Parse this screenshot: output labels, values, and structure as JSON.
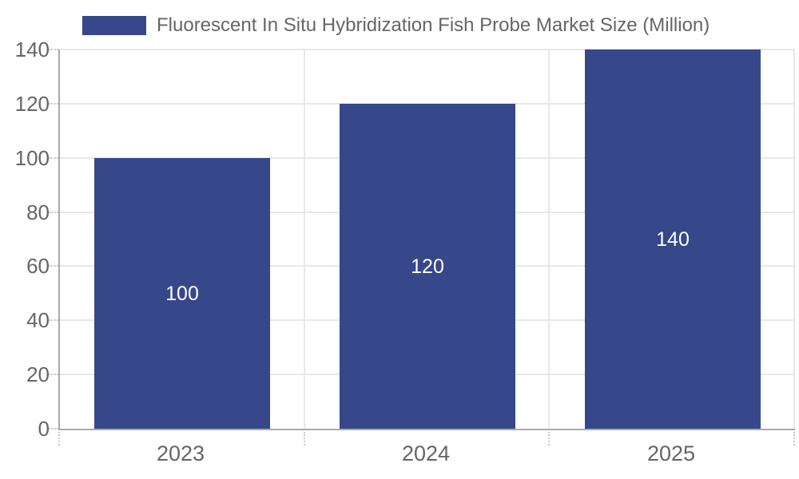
{
  "chart_data": {
    "type": "bar",
    "title": "Fluorescent In Situ Hybridization Fish Probe Market Size (Million)",
    "categories": [
      "2023",
      "2024",
      "2025"
    ],
    "values": [
      100,
      120,
      140
    ],
    "bar_labels": [
      "100",
      "120",
      "140"
    ],
    "xlabel": "",
    "ylabel": "",
    "ylim": [
      0,
      140
    ],
    "yticks": [
      0,
      20,
      40,
      60,
      80,
      100,
      120,
      140
    ],
    "grid": true,
    "legend_position": "top-left",
    "bar_color": "#36478A",
    "bar_label_color": "#ffffff",
    "axis_text_color": "#666666",
    "axis_line_color": "#aaaaaa",
    "gridline_color": "#e8e8e8"
  }
}
